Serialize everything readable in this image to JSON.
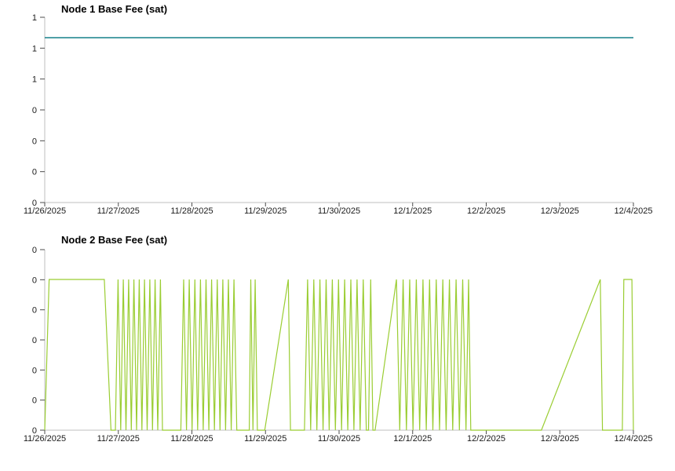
{
  "style": {
    "background_color": "#ffffff",
    "axis_color": "#bfbfbf",
    "tick_color": "#4d4d4d",
    "label_color": "#1a1a1a",
    "title_color": "#000000",
    "node1_line_color": "#17808a",
    "node2_line_color": "#9acd32"
  },
  "chart_data": [
    {
      "type": "line",
      "title": "Node 1 Base Fee (sat)",
      "xlabel": "",
      "ylabel": "",
      "grid": false,
      "legend": "none",
      "x_tick_labels": [
        "11/26/2025",
        "11/27/2025",
        "11/28/2025",
        "11/29/2025",
        "11/30/2025",
        "12/1/2025",
        "12/2/2025",
        "12/3/2025",
        "12/4/2025"
      ],
      "y_tick_labels": [
        "1",
        "1",
        "1",
        "0",
        "0",
        "0",
        "0"
      ],
      "peak_fraction": 0.89,
      "series": [
        {
          "name": "node1-base-fee",
          "color": "#17808a",
          "constant_value": 1,
          "points": [
            [
              0,
              1
            ],
            [
              8,
              1
            ]
          ]
        }
      ]
    },
    {
      "type": "line",
      "title": "Node 2 Base Fee (sat)",
      "xlabel": "",
      "ylabel": "",
      "grid": false,
      "legend": "none",
      "x_tick_labels": [
        "11/26/2025",
        "11/27/2025",
        "11/28/2025",
        "11/29/2025",
        "11/30/2025",
        "12/1/2025",
        "12/2/2025",
        "12/3/2025",
        "12/4/2025"
      ],
      "y_tick_labels": [
        "0",
        "0",
        "0",
        "0",
        "0",
        "0",
        "0"
      ],
      "peak_fraction": 0.835,
      "series": [
        {
          "name": "node2-base-fee",
          "color": "#9acd32",
          "points": [
            [
              0,
              0
            ],
            [
              0.06,
              1
            ],
            [
              0.81,
              1
            ],
            [
              0.9,
              0
            ],
            [
              0.96,
              0
            ],
            [
              0.996,
              1
            ],
            [
              1.032,
              0
            ],
            [
              1.068,
              1
            ],
            [
              1.104,
              0
            ],
            [
              1.14,
              1
            ],
            [
              1.176,
              0
            ],
            [
              1.212,
              1
            ],
            [
              1.248,
              0
            ],
            [
              1.284,
              1
            ],
            [
              1.32,
              0
            ],
            [
              1.356,
              1
            ],
            [
              1.392,
              0
            ],
            [
              1.428,
              1
            ],
            [
              1.464,
              0
            ],
            [
              1.5,
              1
            ],
            [
              1.536,
              0
            ],
            [
              1.572,
              1
            ],
            [
              1.6,
              0
            ],
            [
              1.85,
              0
            ],
            [
              1.888,
              1
            ],
            [
              1.926,
              0
            ],
            [
              1.964,
              1
            ],
            [
              2.002,
              0
            ],
            [
              2.04,
              1
            ],
            [
              2.078,
              0
            ],
            [
              2.116,
              1
            ],
            [
              2.154,
              0
            ],
            [
              2.192,
              1
            ],
            [
              2.23,
              0
            ],
            [
              2.268,
              1
            ],
            [
              2.306,
              0
            ],
            [
              2.344,
              1
            ],
            [
              2.382,
              0
            ],
            [
              2.42,
              1
            ],
            [
              2.458,
              0
            ],
            [
              2.496,
              1
            ],
            [
              2.534,
              0
            ],
            [
              2.572,
              1
            ],
            [
              2.61,
              0
            ],
            [
              2.78,
              0
            ],
            [
              2.8,
              1
            ],
            [
              2.83,
              0
            ],
            [
              2.86,
              1
            ],
            [
              2.89,
              0
            ],
            [
              2.99,
              0
            ],
            [
              3.31,
              1
            ],
            [
              3.34,
              0
            ],
            [
              3.53,
              0
            ],
            [
              3.572,
              1
            ],
            [
              3.614,
              0
            ],
            [
              3.656,
              1
            ],
            [
              3.698,
              0
            ],
            [
              3.74,
              1
            ],
            [
              3.782,
              0
            ],
            [
              3.824,
              1
            ],
            [
              3.866,
              0
            ],
            [
              3.908,
              1
            ],
            [
              3.95,
              0
            ],
            [
              3.992,
              1
            ],
            [
              4.034,
              0
            ],
            [
              4.076,
              1
            ],
            [
              4.118,
              0
            ],
            [
              4.16,
              1
            ],
            [
              4.202,
              0
            ],
            [
              4.244,
              1
            ],
            [
              4.286,
              0
            ],
            [
              4.328,
              1
            ],
            [
              4.37,
              0
            ],
            [
              4.4,
              0
            ],
            [
              4.43,
              1
            ],
            [
              4.46,
              0
            ],
            [
              4.49,
              0
            ],
            [
              4.78,
              1
            ],
            [
              4.825,
              0
            ],
            [
              4.87,
              1
            ],
            [
              4.915,
              0
            ],
            [
              4.96,
              1
            ],
            [
              5.005,
              0
            ],
            [
              5.05,
              1
            ],
            [
              5.095,
              0
            ],
            [
              5.14,
              1
            ],
            [
              5.185,
              0
            ],
            [
              5.23,
              1
            ],
            [
              5.275,
              0
            ],
            [
              5.32,
              1
            ],
            [
              5.365,
              0
            ],
            [
              5.41,
              1
            ],
            [
              5.455,
              0
            ],
            [
              5.5,
              1
            ],
            [
              5.545,
              0
            ],
            [
              5.59,
              1
            ],
            [
              5.635,
              0
            ],
            [
              5.68,
              1
            ],
            [
              5.725,
              0
            ],
            [
              5.76,
              1
            ],
            [
              5.79,
              0
            ],
            [
              6.75,
              0
            ],
            [
              7.55,
              1
            ],
            [
              7.58,
              0
            ],
            [
              7.85,
              0
            ],
            [
              7.87,
              1
            ],
            [
              7.98,
              1
            ],
            [
              8,
              0
            ]
          ]
        }
      ]
    }
  ]
}
